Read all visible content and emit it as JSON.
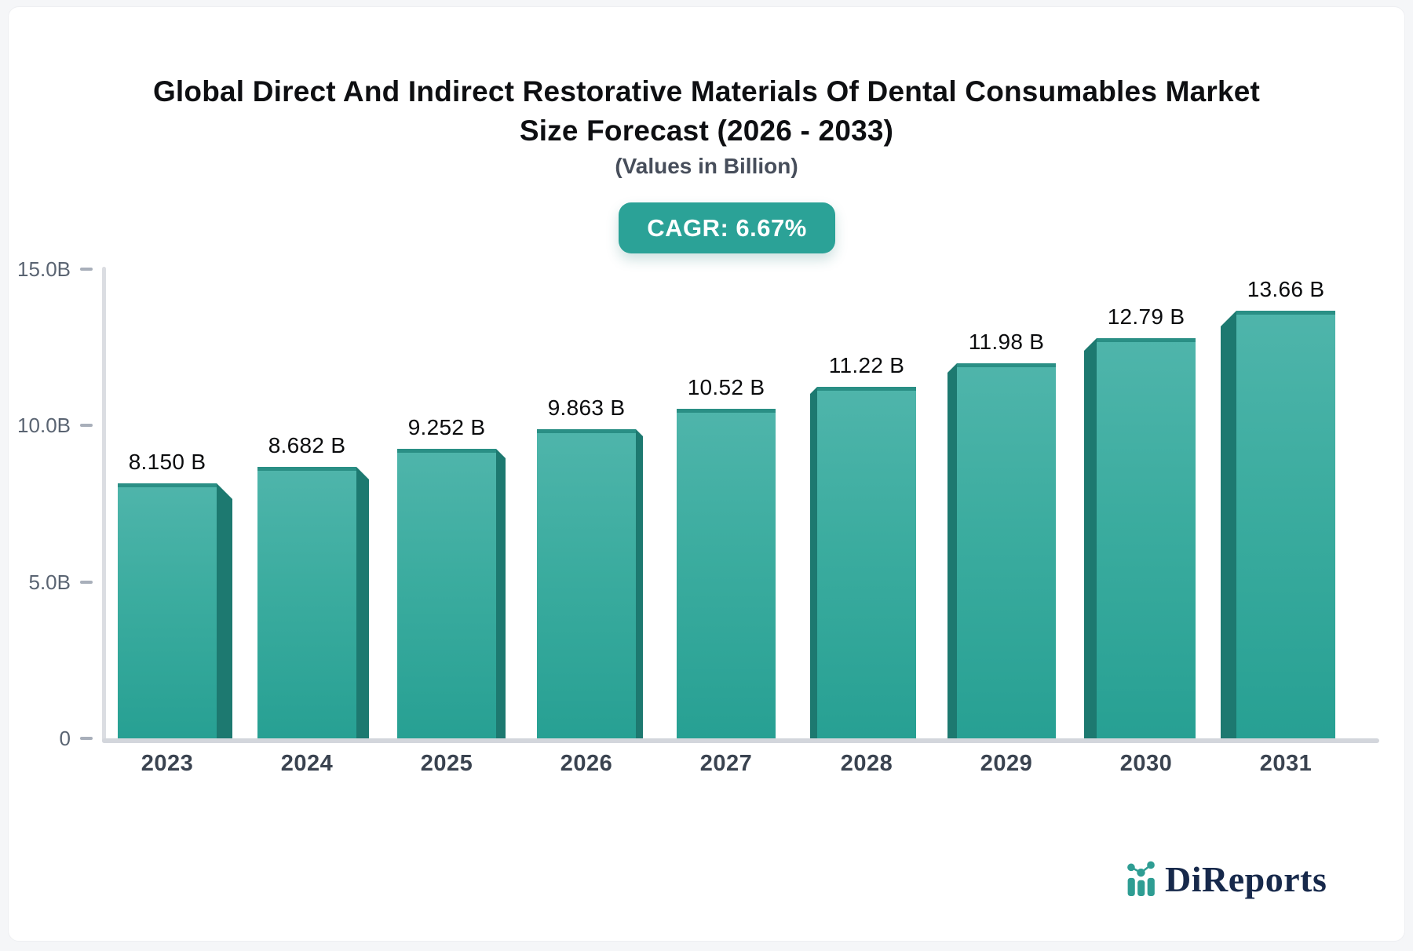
{
  "page": {
    "background": "#F5F6F8",
    "card_background": "#FFFFFF"
  },
  "header": {
    "title_line1": "Global Direct And Indirect Restorative Materials Of Dental Consumables Market",
    "title_line2": "Size Forecast (2026 - 2033)",
    "subtitle": "(Values in Billion)",
    "cagr_badge": "CAGR: 6.67%"
  },
  "chart_data": {
    "type": "bar",
    "title": "Global Direct And Indirect Restorative Materials Of Dental Consumables Market Size Forecast (2026 - 2033)",
    "subtitle": "(Values in Billion)",
    "cagr_percent": 6.67,
    "categories": [
      "2023",
      "2024",
      "2025",
      "2026",
      "2027",
      "2028",
      "2029",
      "2030",
      "2031"
    ],
    "values": [
      8.15,
      8.682,
      9.252,
      9.863,
      10.52,
      11.22,
      11.98,
      12.79,
      13.66
    ],
    "value_labels": [
      "8.150 B",
      "8.682 B",
      "9.252 B",
      "9.863 B",
      "10.52 B",
      "11.22 B",
      "11.98 B",
      "12.79 B",
      "13.66 B"
    ],
    "xlabel": "",
    "ylabel": "",
    "ylim": [
      0,
      15
    ],
    "yticks": [
      {
        "label": "15.0B",
        "value": 15
      },
      {
        "label": "10.0B",
        "value": 10
      },
      {
        "label": "5.0B",
        "value": 5
      },
      {
        "label": "0",
        "value": 0
      }
    ],
    "grid": false,
    "legend": null,
    "bar_style": {
      "face_top": "#4FB5AB",
      "face_bottom": "#27A093",
      "top_strip": "#2A8F85",
      "side": "#1D7970"
    }
  },
  "footer": {
    "brand": "DiReports"
  },
  "colors": {
    "accent_teal": "#2BA297",
    "badge_text": "#FFFFFF",
    "axis_text": "#5A6472",
    "xaxis_text": "#3A4350",
    "value_text": "#0B0C0E",
    "brand_navy": "#17294B",
    "brand_teal": "#2E9D93"
  }
}
